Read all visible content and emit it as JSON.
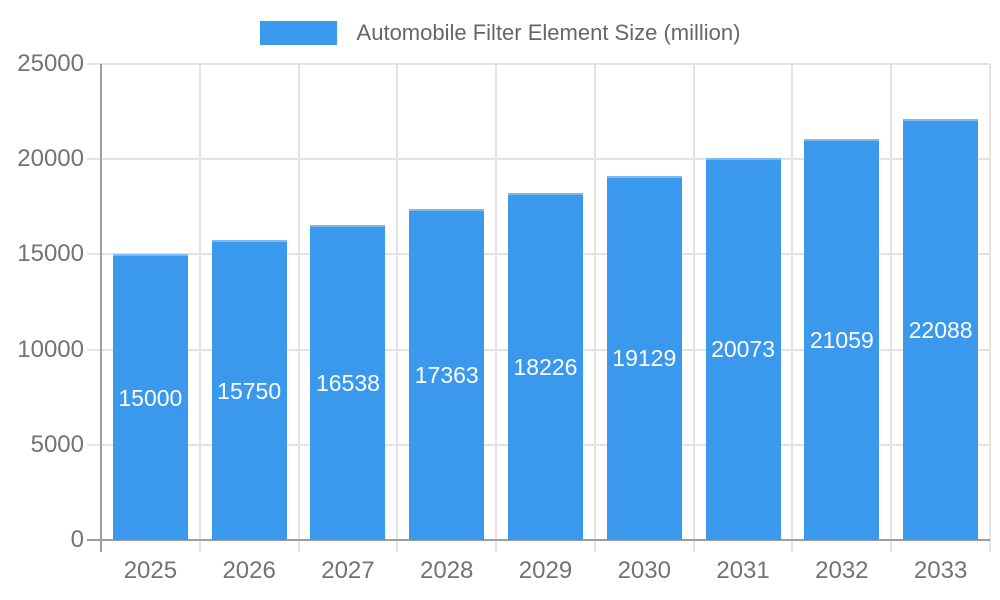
{
  "chart_data": {
    "type": "bar",
    "title": "",
    "legend": "Automobile Filter Element Size (million)",
    "legend_position": "top",
    "categories": [
      "2025",
      "2026",
      "2027",
      "2028",
      "2029",
      "2030",
      "2031",
      "2032",
      "2033"
    ],
    "values": [
      15000,
      15750,
      16538,
      17363,
      18226,
      19129,
      20073,
      21059,
      22088
    ],
    "xlabel": "",
    "ylabel": "",
    "ylim": [
      0,
      25000
    ],
    "yticks": [
      0,
      5000,
      10000,
      15000,
      20000,
      25000
    ],
    "grid": true,
    "colors": {
      "bar_fill": "#3a99ec",
      "bar_border": "#7db9f1",
      "value_label": "#ffffff",
      "axis_line": "#9e9e9e",
      "grid_line": "#e3e3e3",
      "tick_label": "#737373",
      "legend_text": "#666666"
    }
  }
}
